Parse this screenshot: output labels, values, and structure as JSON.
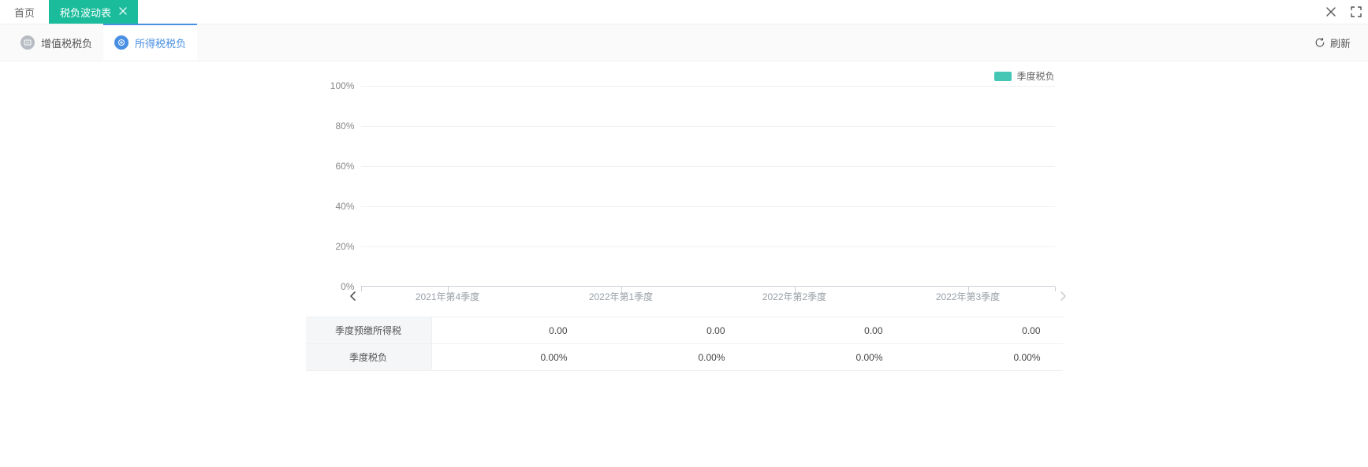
{
  "tabs": {
    "home_label": "首页",
    "active_label": "税负波动表"
  },
  "subtabs": {
    "vat_label": "增值税税负",
    "income_label": "所得税税负"
  },
  "toolbar": {
    "refresh_label": "刷新"
  },
  "chart": {
    "type": "bar",
    "legend_label": "季度税负",
    "legend_color": "#46c7b6",
    "ylim": [
      0,
      100
    ],
    "ytick_step": 20,
    "yticks": [
      "0%",
      "20%",
      "40%",
      "60%",
      "80%",
      "100%"
    ],
    "categories": [
      "2021年第4季度",
      "2022年第1季度",
      "2022年第2季度",
      "2022年第3季度"
    ],
    "values": [
      0,
      0,
      0,
      0
    ],
    "grid_color": "#eef0f2",
    "axis_color": "#ccd0d5",
    "background_color": "#ffffff",
    "label_color": "#9aa0a6",
    "ylabel_fontsize": 12
  },
  "table": {
    "rows": [
      {
        "header": "季度预缴所得税",
        "cells": [
          "0.00",
          "0.00",
          "0.00",
          "0.00"
        ]
      },
      {
        "header": "季度税负",
        "cells": [
          "0.00%",
          "0.00%",
          "0.00%",
          "0.00%"
        ]
      }
    ]
  }
}
